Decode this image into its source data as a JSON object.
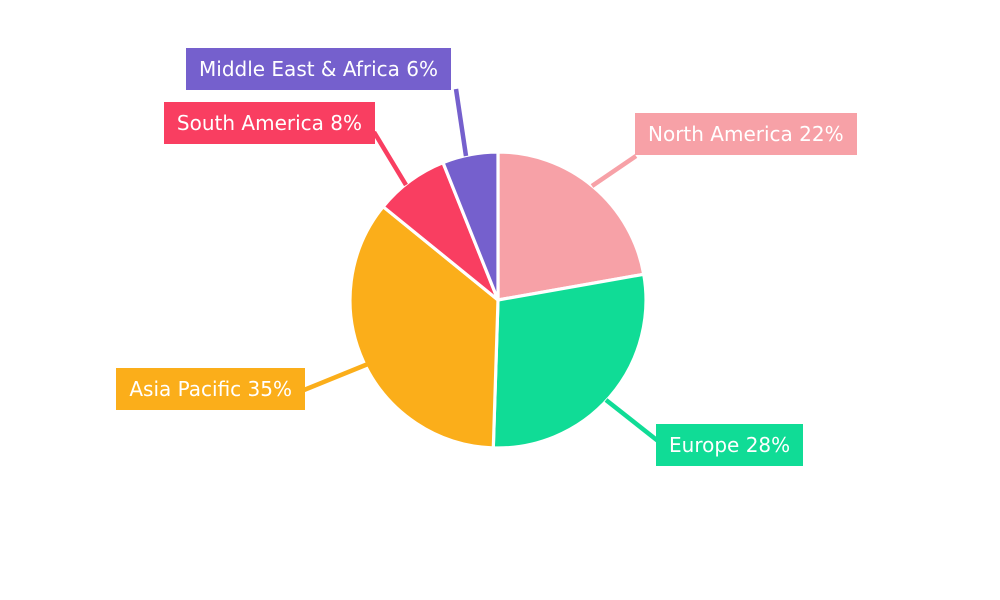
{
  "page": {
    "background": "#ffffff"
  },
  "chart_data": {
    "type": "pie",
    "unit": "%",
    "direction": "clockwise",
    "start_angle_deg": 0,
    "label_position": "outside-with-leader-lines",
    "label_format": "{label} {value}%",
    "legend": "none",
    "background": "#ffffff",
    "label_text_color": "#ffffff",
    "slice_divider_color": "#ffffff",
    "slices": [
      {
        "label": "North America",
        "value": 22,
        "color": "#F7A1A7"
      },
      {
        "label": "Europe",
        "value": 28,
        "color": "#10DC96"
      },
      {
        "label": "Asia Pacific",
        "value": 35,
        "color": "#FBAE1A"
      },
      {
        "label": "South America",
        "value": 8,
        "color": "#F93E61"
      },
      {
        "label": "Middle East & Africa",
        "value": 6,
        "color": "#7560CD"
      }
    ]
  }
}
